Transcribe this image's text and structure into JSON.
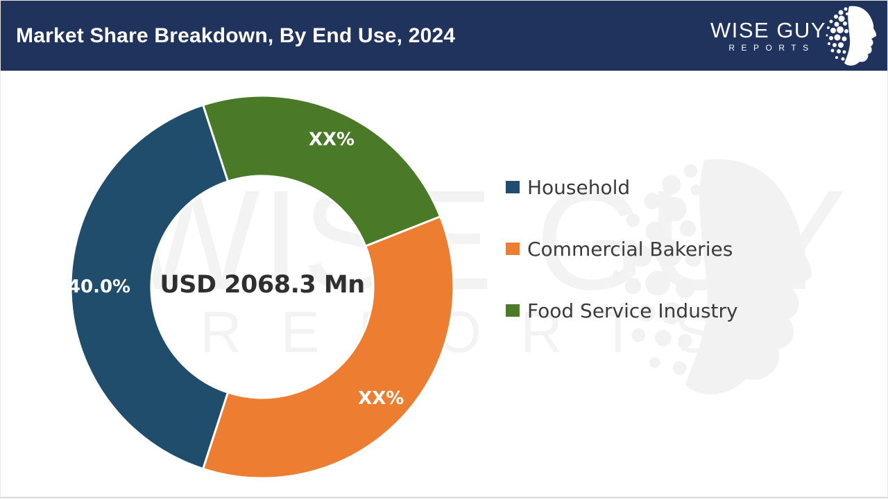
{
  "header": {
    "title": "Market Share Breakdown, By End Use, 2024",
    "logo": {
      "line1": "WISE GUY",
      "line2": "REPORTS"
    }
  },
  "watermark": {
    "line1": "WISE GUY",
    "line2": "REPORTS"
  },
  "chart_data": {
    "type": "pie",
    "subtype": "donut",
    "title": "Market Share Breakdown, By End Use, 2024",
    "center_label": "USD 2068.3 Mn",
    "start_angle": 108,
    "direction": "counterclockwise",
    "inner_radius_ratio": 0.58,
    "legend_position": "right",
    "categories": [
      "Household",
      "Commercial Bakeries",
      "Food Service Industry"
    ],
    "series": [
      {
        "name": "Household",
        "value": 40.0,
        "display_label": "40.0%",
        "color": "#1f4d6b"
      },
      {
        "name": "Commercial Bakeries",
        "value": 36.0,
        "display_label": "XX%",
        "color": "#ed7d31"
      },
      {
        "name": "Food Service Industry",
        "value": 24.0,
        "display_label": "XX%",
        "color": "#4a7a28"
      }
    ]
  },
  "theme": {
    "header_bg": "#20335c",
    "page_bg": "#ffffff",
    "slice_gap_color": "#ffffff",
    "center_label_color": "#2f2f2f",
    "legend_text_color": "#3a3a3a",
    "watermark_color": "#f2f2f2"
  }
}
